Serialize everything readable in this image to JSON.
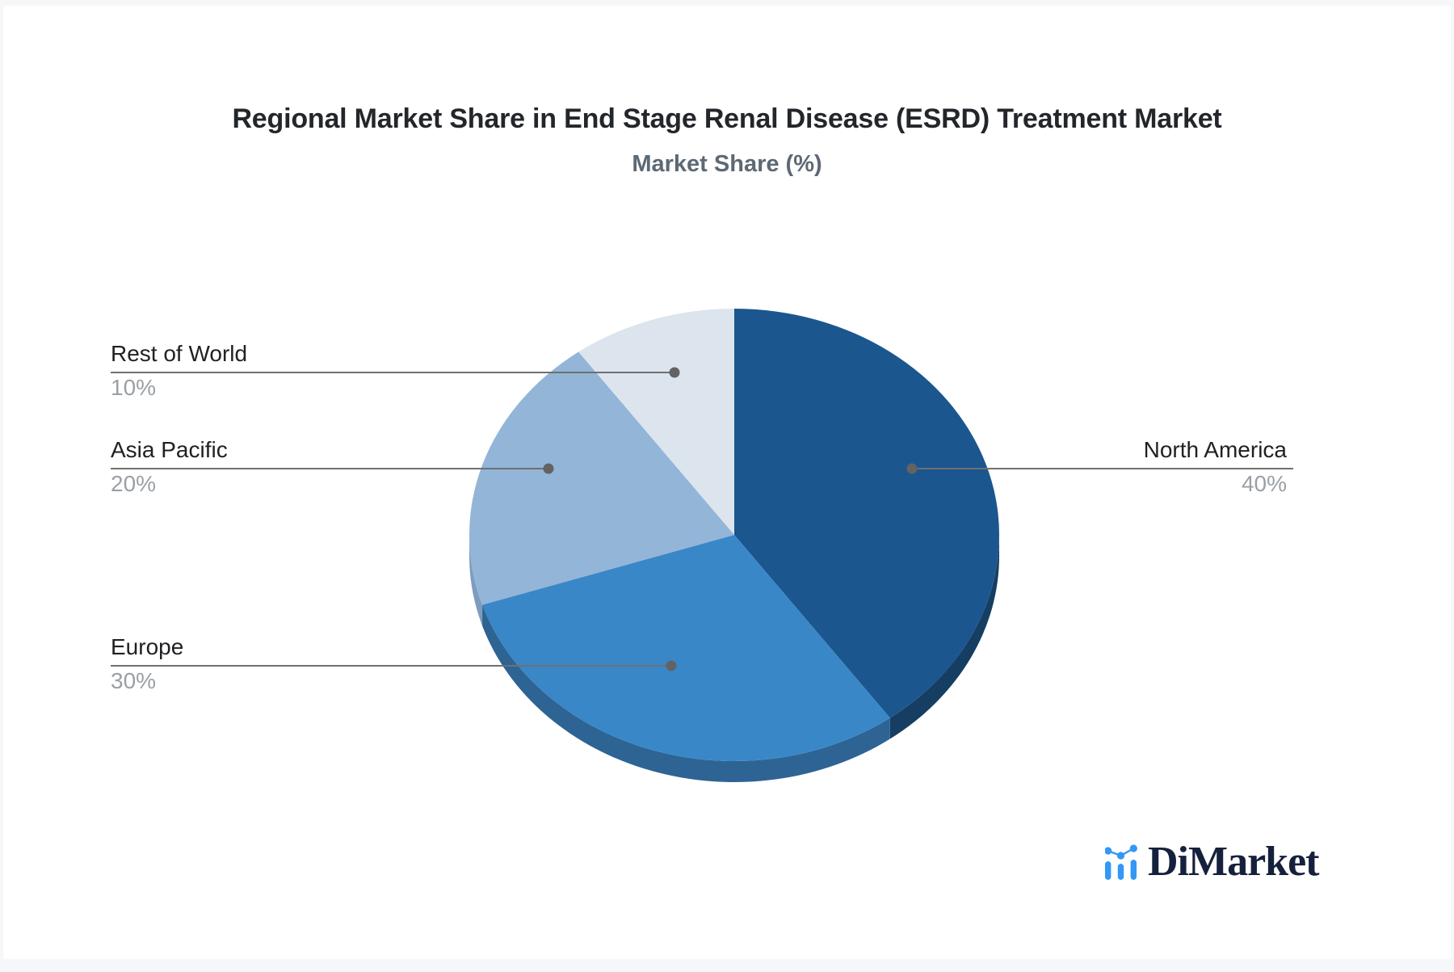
{
  "page": {
    "background": "#f6f7f9",
    "card_background": "#ffffff"
  },
  "header": {
    "title": "Regional Market Share in End Stage Renal Disease (ESRD) Treatment Market",
    "subtitle": "Market Share (%)"
  },
  "chart_data": {
    "type": "pie",
    "style": "3d",
    "title": "Regional Market Share in End Stage Renal Disease (ESRD) Treatment Market",
    "subtitle": "Market Share (%)",
    "unit": "%",
    "start_angle_deg": 0,
    "direction": "clockwise",
    "labels_style": "callout-lines",
    "callout_line_color": "#707070",
    "callout_dot_color": "#636363",
    "slices": [
      {
        "label": "North America",
        "value": 40,
        "value_text": "40%",
        "color": "#1B568F",
        "side_color": "#163E62"
      },
      {
        "label": "Europe",
        "value": 30,
        "value_text": "30%",
        "color": "#3A87C8",
        "side_color": "#2D6494"
      },
      {
        "label": "Asia Pacific",
        "value": 20,
        "value_text": "20%",
        "color": "#92B5D8",
        "side_color": "#7E9CBD"
      },
      {
        "label": "Rest of World",
        "value": 10,
        "value_text": "10%",
        "color": "#DCE4EE",
        "side_color": "#C2CDDB"
      }
    ]
  },
  "branding": {
    "logo_text": "DiMarket",
    "logo_icon": "mini-bar-line-chart",
    "logo_text_color": "#15213C",
    "logo_icon_color": "#3398F4"
  }
}
